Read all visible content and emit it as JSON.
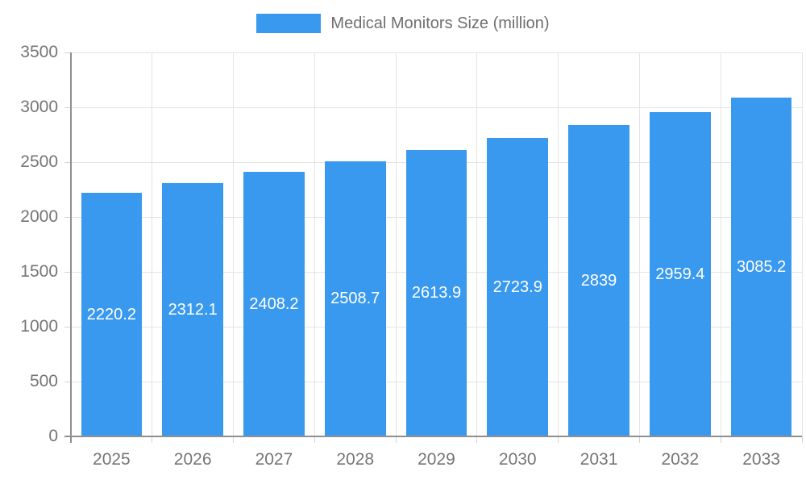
{
  "chart_data": {
    "type": "bar",
    "title": "Medical Monitors Size (million)",
    "legend": [
      "Medical Monitors Size (million)"
    ],
    "legend_position": "top-center",
    "categories": [
      "2025",
      "2026",
      "2027",
      "2028",
      "2029",
      "2030",
      "2031",
      "2032",
      "2033"
    ],
    "values": [
      2220.2,
      2312.1,
      2408.2,
      2508.7,
      2613.9,
      2723.9,
      2839,
      2959.4,
      3085.2
    ],
    "bar_labels": [
      "2220.2",
      "2312.1",
      "2408.2",
      "2508.7",
      "2613.9",
      "2723.9",
      "2839",
      "2959.4",
      "3085.2"
    ],
    "bar_label_position": "inside-center",
    "xlabel": "",
    "ylabel": "",
    "ylim": [
      0,
      3500
    ],
    "yticks": [
      0,
      500,
      1000,
      1500,
      2000,
      2500,
      3000,
      3500
    ],
    "grid": true,
    "colors": {
      "bar": "#3999ee",
      "grid": "#e4e4e4",
      "tick": "#d4d4d4",
      "axis": "#8f8f8f",
      "tick_label": "#757575",
      "legend_text": "#6f6f6f",
      "bar_label": "#ffffff",
      "background": "#ffffff"
    }
  }
}
